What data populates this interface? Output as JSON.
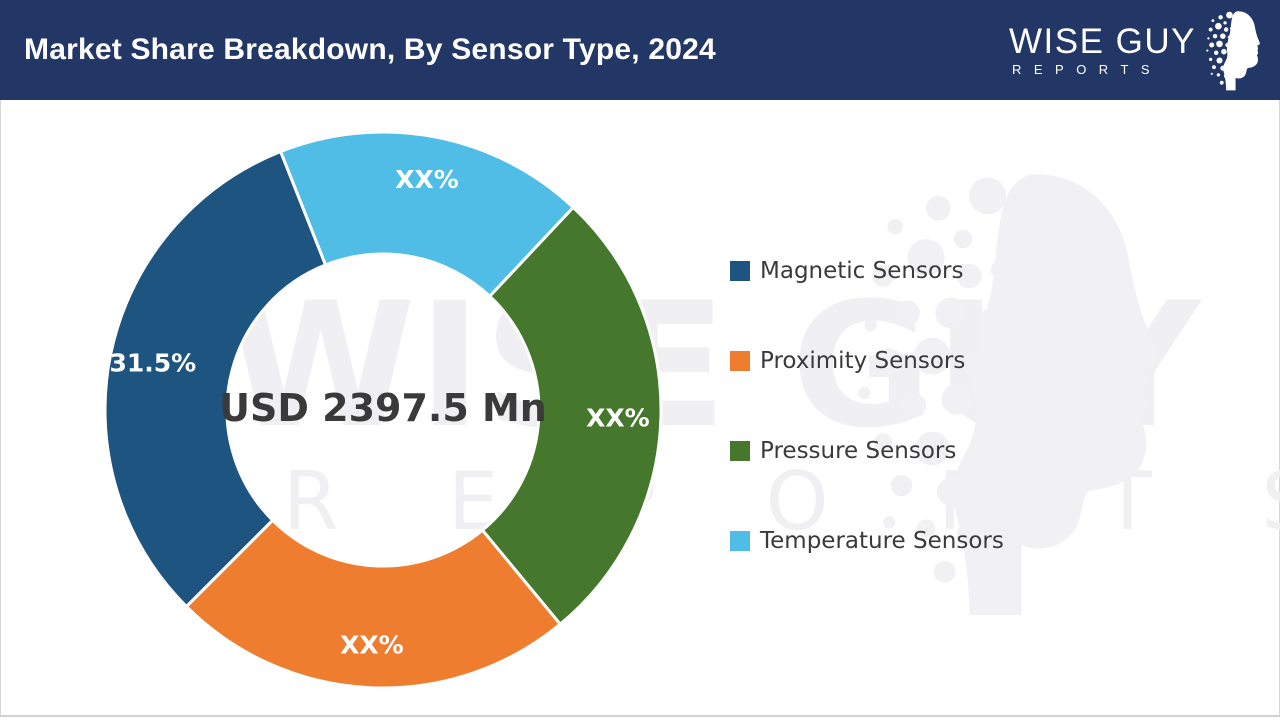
{
  "header": {
    "title": "Market Share Breakdown, By Sensor Type, 2024",
    "logo": {
      "line1": "WISE GUY",
      "line2": "REPORTS"
    }
  },
  "watermark": {
    "line1": "WISE GUY",
    "line2": "R E P O R T S"
  },
  "chart_data": {
    "type": "pie",
    "subtype": "donut",
    "title": "Market Share Breakdown, By Sensor Type, 2024",
    "center_label": "USD 2397.5 Mn",
    "legend_position": "right",
    "start_angle_deg": 135,
    "direction": "clockwise",
    "draw_order": [
      0,
      3,
      2,
      1
    ],
    "segments": [
      {
        "name": "Magnetic Sensors",
        "color": "#1E5480",
        "share_label": "31.5%",
        "share_pct_est": 31.5
      },
      {
        "name": "Proximity Sensors",
        "color": "#EE7D30",
        "share_label": "XX%",
        "share_pct_est": 23.5
      },
      {
        "name": "Pressure Sensors",
        "color": "#45772C",
        "share_label": "XX%",
        "share_pct_est": 27.0
      },
      {
        "name": "Temperature Sensors",
        "color": "#4FBDE6",
        "share_label": "XX%",
        "share_pct_est": 18.0
      }
    ]
  }
}
